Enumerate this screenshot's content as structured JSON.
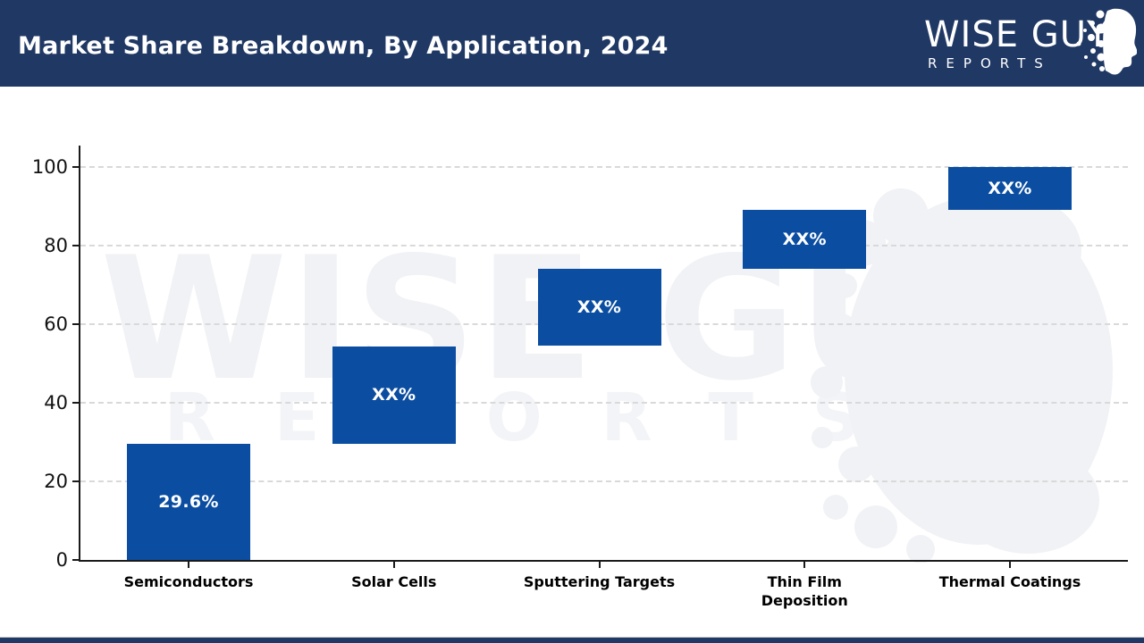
{
  "header": {
    "title": "Market Share Breakdown, By Application, 2024",
    "logo": {
      "line1": "WISE GUY",
      "line2": "REPORTS"
    }
  },
  "watermark": {
    "line1": "WISE GUY",
    "line2": "REPORTS"
  },
  "colors": {
    "header_bg": "#203864",
    "footer_bg": "#203864",
    "bar_blue": "#0b4da1",
    "watermark_gray": "#f1f2f5",
    "gridline_gray": "#d9d9d9"
  },
  "chart_data": {
    "type": "bar",
    "subtype": "waterfall",
    "title": "Market Share Breakdown, By Application, 2024",
    "categories": [
      "Semiconductors",
      "Solar Cells",
      "Sputtering Targets",
      "Thin Film\nDeposition",
      "Thermal Coatings"
    ],
    "segments": [
      {
        "category": "Semiconductors",
        "start": 0,
        "end": 29.6,
        "label": "29.6%"
      },
      {
        "category": "Solar Cells",
        "start": 29.6,
        "end": 54.3,
        "label": "XX%"
      },
      {
        "category": "Sputtering Targets",
        "start": 54.5,
        "end": 74,
        "label": "XX%"
      },
      {
        "category": "Thin Film Deposition",
        "start": 74,
        "end": 89,
        "label": "XX%"
      },
      {
        "category": "Thermal Coatings",
        "start": 89,
        "end": 100,
        "label": "XX%"
      }
    ],
    "ylim": [
      0,
      100
    ],
    "yticks": [
      0,
      20,
      40,
      60,
      80,
      100
    ],
    "xlabel": "",
    "ylabel": "",
    "grid": "horizontal-dashed",
    "legend": "none",
    "bar_color": "#0b4da1"
  }
}
